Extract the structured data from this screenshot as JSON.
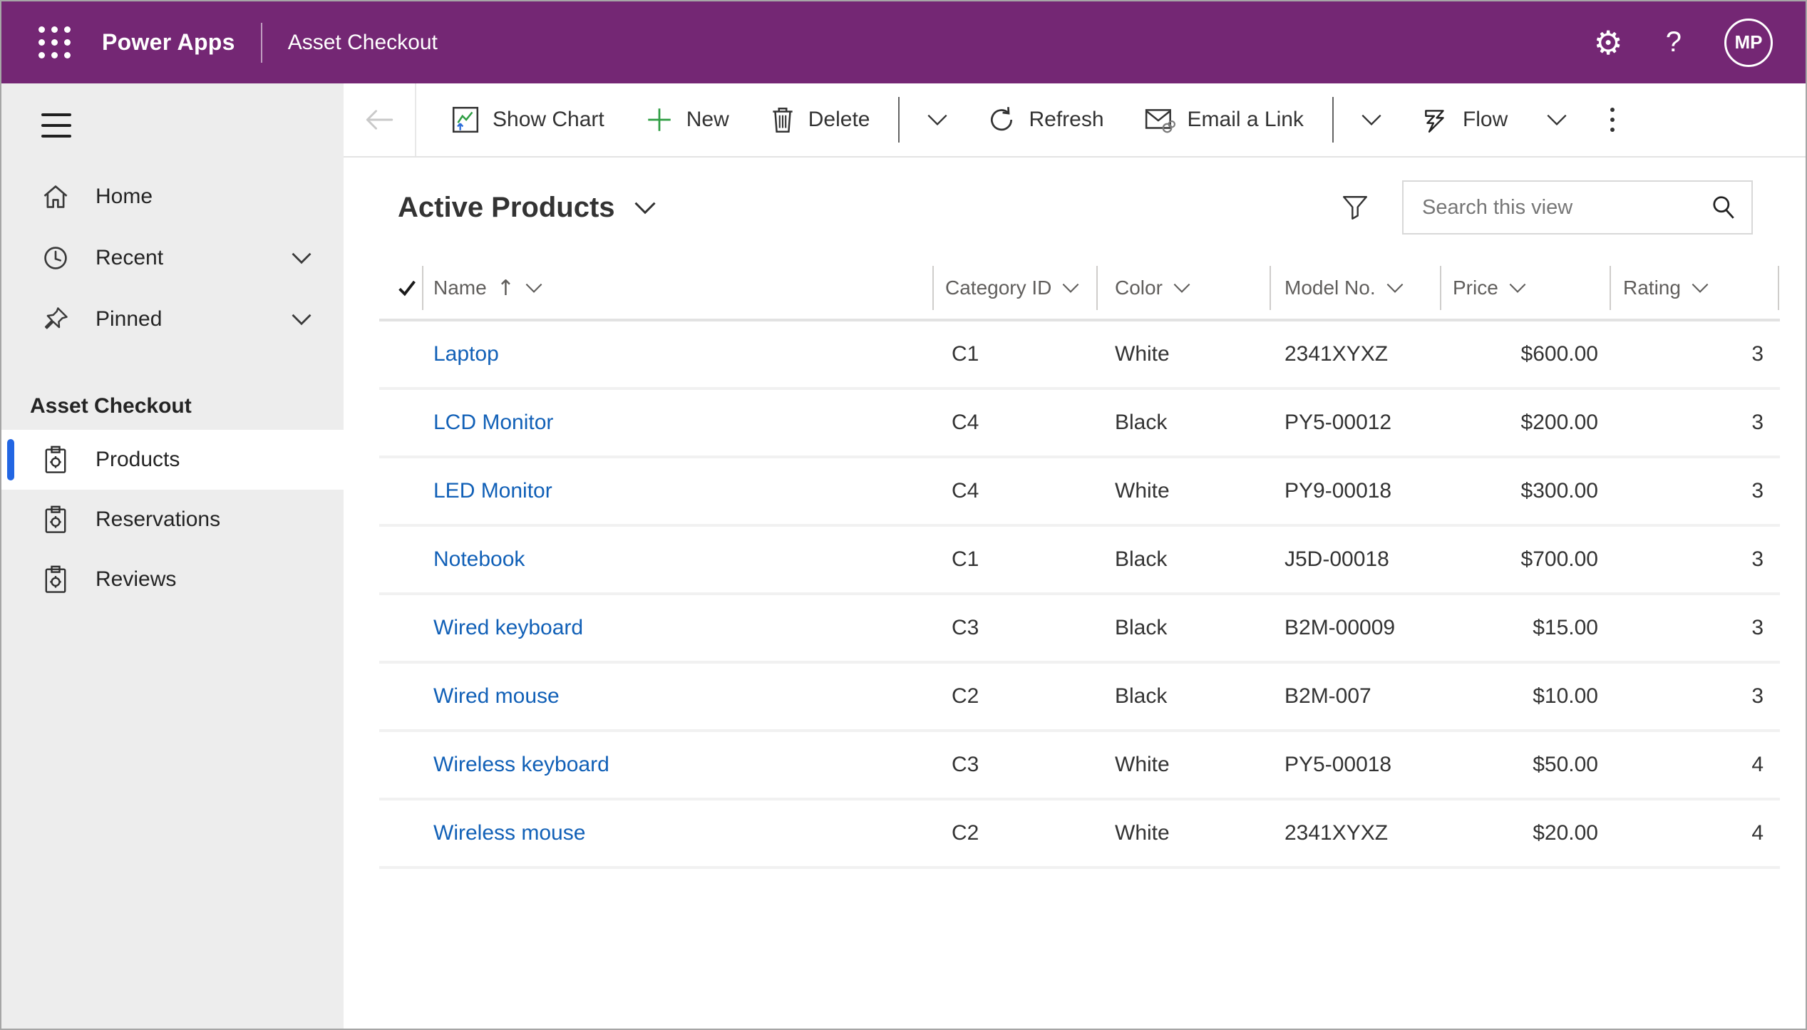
{
  "colors": {
    "header_purple": "#742774",
    "link_blue": "#1160b7",
    "nav_selected_accent": "#2266e3",
    "row_separator": "#f1f1f1"
  },
  "app_header": {
    "brand": "Power Apps",
    "app_name": "Asset Checkout",
    "help_label": "?",
    "avatar_initials": "MP"
  },
  "sidebar": {
    "nav": [
      {
        "label": "Home"
      },
      {
        "label": "Recent"
      },
      {
        "label": "Pinned"
      }
    ],
    "section_title": "Asset Checkout",
    "entities": [
      {
        "label": "Products",
        "selected": true
      },
      {
        "label": "Reservations",
        "selected": false
      },
      {
        "label": "Reviews",
        "selected": false
      }
    ]
  },
  "command_bar": {
    "items": [
      {
        "label": "Show Chart"
      },
      {
        "label": "New"
      },
      {
        "label": "Delete"
      },
      {
        "label": "Refresh"
      },
      {
        "label": "Email a Link"
      },
      {
        "label": "Flow"
      }
    ]
  },
  "view": {
    "title": "Active Products",
    "search_placeholder": "Search this view"
  },
  "grid": {
    "columns": [
      {
        "key": "name",
        "label": "Name",
        "sort": "asc"
      },
      {
        "key": "category",
        "label": "Category ID"
      },
      {
        "key": "color",
        "label": "Color"
      },
      {
        "key": "model",
        "label": "Model No."
      },
      {
        "key": "price",
        "label": "Price"
      },
      {
        "key": "rating",
        "label": "Rating"
      }
    ],
    "rows": [
      {
        "name": "Laptop",
        "category": "C1",
        "color": "White",
        "model": "2341XYXZ",
        "price": "$600.00",
        "rating": "3"
      },
      {
        "name": "LCD Monitor",
        "category": "C4",
        "color": "Black",
        "model": "PY5-00012",
        "price": "$200.00",
        "rating": "3"
      },
      {
        "name": "LED Monitor",
        "category": "C4",
        "color": "White",
        "model": "PY9-00018",
        "price": "$300.00",
        "rating": "3"
      },
      {
        "name": "Notebook",
        "category": "C1",
        "color": "Black",
        "model": "J5D-00018",
        "price": "$700.00",
        "rating": "3"
      },
      {
        "name": "Wired keyboard",
        "category": "C3",
        "color": "Black",
        "model": "B2M-00009",
        "price": "$15.00",
        "rating": "3"
      },
      {
        "name": "Wired mouse",
        "category": "C2",
        "color": "Black",
        "model": "B2M-007",
        "price": "$10.00",
        "rating": "3"
      },
      {
        "name": "Wireless keyboard",
        "category": "C3",
        "color": "White",
        "model": "PY5-00018",
        "price": "$50.00",
        "rating": "4"
      },
      {
        "name": "Wireless mouse",
        "category": "C2",
        "color": "White",
        "model": "2341XYXZ",
        "price": "$20.00",
        "rating": "4"
      }
    ]
  }
}
